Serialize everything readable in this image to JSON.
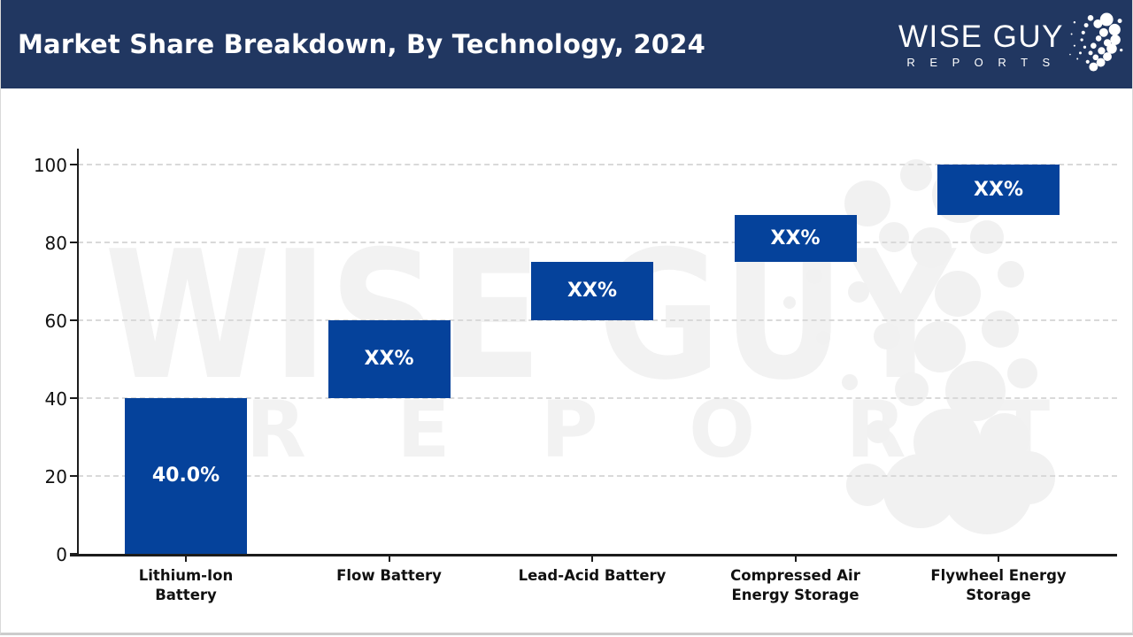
{
  "header": {
    "title": "Market Share Breakdown, By Technology, 2024",
    "bg_color": "#213761",
    "logo": {
      "line1": "WISE GUY",
      "line2": "R E P O R T S"
    }
  },
  "watermark": {
    "line1": "WISE GUY",
    "line2": "R E P O R T S"
  },
  "chart_data": {
    "type": "bar",
    "subtype": "waterfall",
    "title": "Market Share Breakdown, By Technology, 2024",
    "categories": [
      "Lithium-Ion Battery",
      "Flow Battery",
      "Lead-Acid Battery",
      "Compressed Air Energy Storage",
      "Flywheel Energy Storage"
    ],
    "tick_labels": [
      "Lithium-Ion\nBattery",
      "Flow Battery",
      "Lead-Acid Battery",
      "Compressed Air\nEnergy Storage",
      "Flywheel Energy\nStorage"
    ],
    "series": [
      {
        "name": "Market Share (%)",
        "segments": [
          {
            "category": "Lithium-Ion Battery",
            "start": 0,
            "end": 40,
            "label": "40.0%"
          },
          {
            "category": "Flow Battery",
            "start": 40,
            "end": 60,
            "label": "XX%"
          },
          {
            "category": "Lead-Acid Battery",
            "start": 60,
            "end": 75,
            "label": "XX%"
          },
          {
            "category": "Compressed Air Energy Storage",
            "start": 75,
            "end": 87,
            "label": "XX%"
          },
          {
            "category": "Flywheel Energy Storage",
            "start": 87,
            "end": 100,
            "label": "XX%"
          }
        ]
      }
    ],
    "xlabel": "",
    "ylabel": "",
    "ylim": [
      0,
      100
    ],
    "yticks": [
      0,
      20,
      40,
      60,
      80,
      100
    ],
    "grid": "horizontal-dashed",
    "legend": "none",
    "bar_color": "#05429B",
    "bar_label_color": "#ffffff",
    "axis_color": "#1c1c1c",
    "gridline_color": "#d9d9d9"
  }
}
